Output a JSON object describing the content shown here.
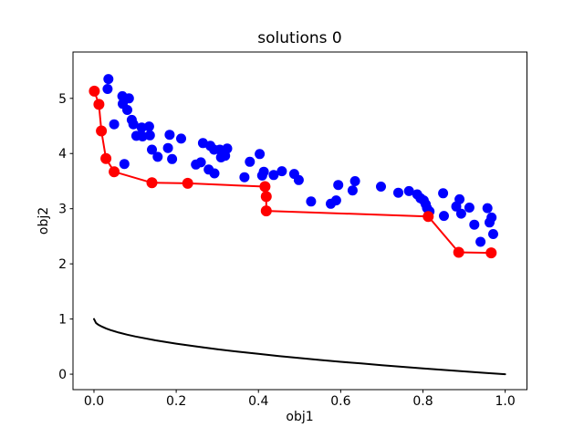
{
  "figure": {
    "title": "solutions 0",
    "background_color": "#ffffff",
    "spine_color": "#000000"
  },
  "chart_data": {
    "type": "scatter",
    "title": "solutions 0",
    "xlabel": "obj1",
    "ylabel": "obj2",
    "xlim": [
      -0.051,
      1.053
    ],
    "ylim": [
      -0.28,
      5.84
    ],
    "x_ticks": [
      0.0,
      0.2,
      0.4,
      0.6,
      0.8,
      1.0
    ],
    "x_tick_labels": [
      "0.0",
      "0.2",
      "0.4",
      "0.6",
      "0.8",
      "1.0"
    ],
    "y_ticks": [
      0,
      1,
      2,
      3,
      4,
      5
    ],
    "y_tick_labels": [
      "0",
      "1",
      "2",
      "3",
      "4",
      "5"
    ],
    "grid": false,
    "legend": "none",
    "series": [
      {
        "name": "reference-pareto-front",
        "color": "#000000",
        "line": true,
        "marker": false,
        "line_width": 2,
        "points": [
          [
            0.0,
            1.0
          ],
          [
            0.005,
            0.929
          ],
          [
            0.01,
            0.9
          ],
          [
            0.02,
            0.859
          ],
          [
            0.03,
            0.827
          ],
          [
            0.04,
            0.8
          ],
          [
            0.06,
            0.755
          ],
          [
            0.08,
            0.717
          ],
          [
            0.1,
            0.684
          ],
          [
            0.15,
            0.613
          ],
          [
            0.2,
            0.553
          ],
          [
            0.25,
            0.5
          ],
          [
            0.3,
            0.452
          ],
          [
            0.35,
            0.408
          ],
          [
            0.4,
            0.368
          ],
          [
            0.45,
            0.329
          ],
          [
            0.5,
            0.293
          ],
          [
            0.55,
            0.258
          ],
          [
            0.6,
            0.225
          ],
          [
            0.65,
            0.194
          ],
          [
            0.7,
            0.163
          ],
          [
            0.75,
            0.134
          ],
          [
            0.8,
            0.106
          ],
          [
            0.85,
            0.078
          ],
          [
            0.9,
            0.051
          ],
          [
            0.95,
            0.025
          ],
          [
            1.0,
            0.0
          ]
        ]
      },
      {
        "name": "population-solutions",
        "color": "#0000ff",
        "line": false,
        "marker": true,
        "marker_radius": 5.5,
        "points": [
          [
            0.035,
            5.35
          ],
          [
            0.033,
            5.17
          ],
          [
            0.069,
            5.04
          ],
          [
            0.085,
            5.0
          ],
          [
            0.07,
            4.9
          ],
          [
            0.081,
            4.79
          ],
          [
            0.092,
            4.61
          ],
          [
            0.049,
            4.53
          ],
          [
            0.096,
            4.53
          ],
          [
            0.116,
            4.47
          ],
          [
            0.134,
            4.49
          ],
          [
            0.103,
            4.32
          ],
          [
            0.118,
            4.31
          ],
          [
            0.136,
            4.33
          ],
          [
            0.184,
            4.34
          ],
          [
            0.212,
            4.27
          ],
          [
            0.265,
            4.19
          ],
          [
            0.141,
            4.07
          ],
          [
            0.18,
            4.1
          ],
          [
            0.155,
            3.94
          ],
          [
            0.19,
            3.9
          ],
          [
            0.074,
            3.81
          ],
          [
            0.283,
            4.14
          ],
          [
            0.292,
            4.07
          ],
          [
            0.306,
            4.07
          ],
          [
            0.324,
            4.09
          ],
          [
            0.309,
            3.93
          ],
          [
            0.319,
            3.96
          ],
          [
            0.248,
            3.8
          ],
          [
            0.26,
            3.84
          ],
          [
            0.279,
            3.71
          ],
          [
            0.293,
            3.64
          ],
          [
            0.403,
            3.99
          ],
          [
            0.379,
            3.85
          ],
          [
            0.366,
            3.57
          ],
          [
            0.409,
            3.6
          ],
          [
            0.413,
            3.67
          ],
          [
            0.437,
            3.61
          ],
          [
            0.457,
            3.68
          ],
          [
            0.487,
            3.63
          ],
          [
            0.498,
            3.52
          ],
          [
            0.528,
            3.13
          ],
          [
            0.576,
            3.09
          ],
          [
            0.589,
            3.15
          ],
          [
            0.594,
            3.43
          ],
          [
            0.635,
            3.5
          ],
          [
            0.629,
            3.33
          ],
          [
            0.698,
            3.4
          ],
          [
            0.74,
            3.29
          ],
          [
            0.766,
            3.32
          ],
          [
            0.786,
            3.26
          ],
          [
            0.794,
            3.19
          ],
          [
            0.802,
            3.15
          ],
          [
            0.807,
            3.08
          ],
          [
            0.81,
            3.01
          ],
          [
            0.816,
            2.95
          ],
          [
            0.849,
            3.28
          ],
          [
            0.851,
            2.87
          ],
          [
            0.881,
            3.04
          ],
          [
            0.889,
            3.17
          ],
          [
            0.893,
            2.91
          ],
          [
            0.913,
            3.02
          ],
          [
            0.925,
            2.71
          ],
          [
            0.94,
            2.4
          ],
          [
            0.957,
            3.01
          ],
          [
            0.962,
            2.75
          ],
          [
            0.967,
            2.84
          ],
          [
            0.971,
            2.54
          ]
        ]
      },
      {
        "name": "non-dominated-front",
        "color": "#ff0000",
        "line": true,
        "marker": true,
        "line_width": 2,
        "marker_radius": 6,
        "points": [
          [
            0.001,
            5.13
          ],
          [
            0.012,
            4.89
          ],
          [
            0.018,
            4.41
          ],
          [
            0.029,
            3.91
          ],
          [
            0.049,
            3.67
          ],
          [
            0.141,
            3.47
          ],
          [
            0.228,
            3.46
          ],
          [
            0.416,
            3.4
          ],
          [
            0.419,
            3.22
          ],
          [
            0.419,
            2.96
          ],
          [
            0.813,
            2.86
          ],
          [
            0.887,
            2.21
          ],
          [
            0.966,
            2.2
          ]
        ]
      }
    ]
  }
}
